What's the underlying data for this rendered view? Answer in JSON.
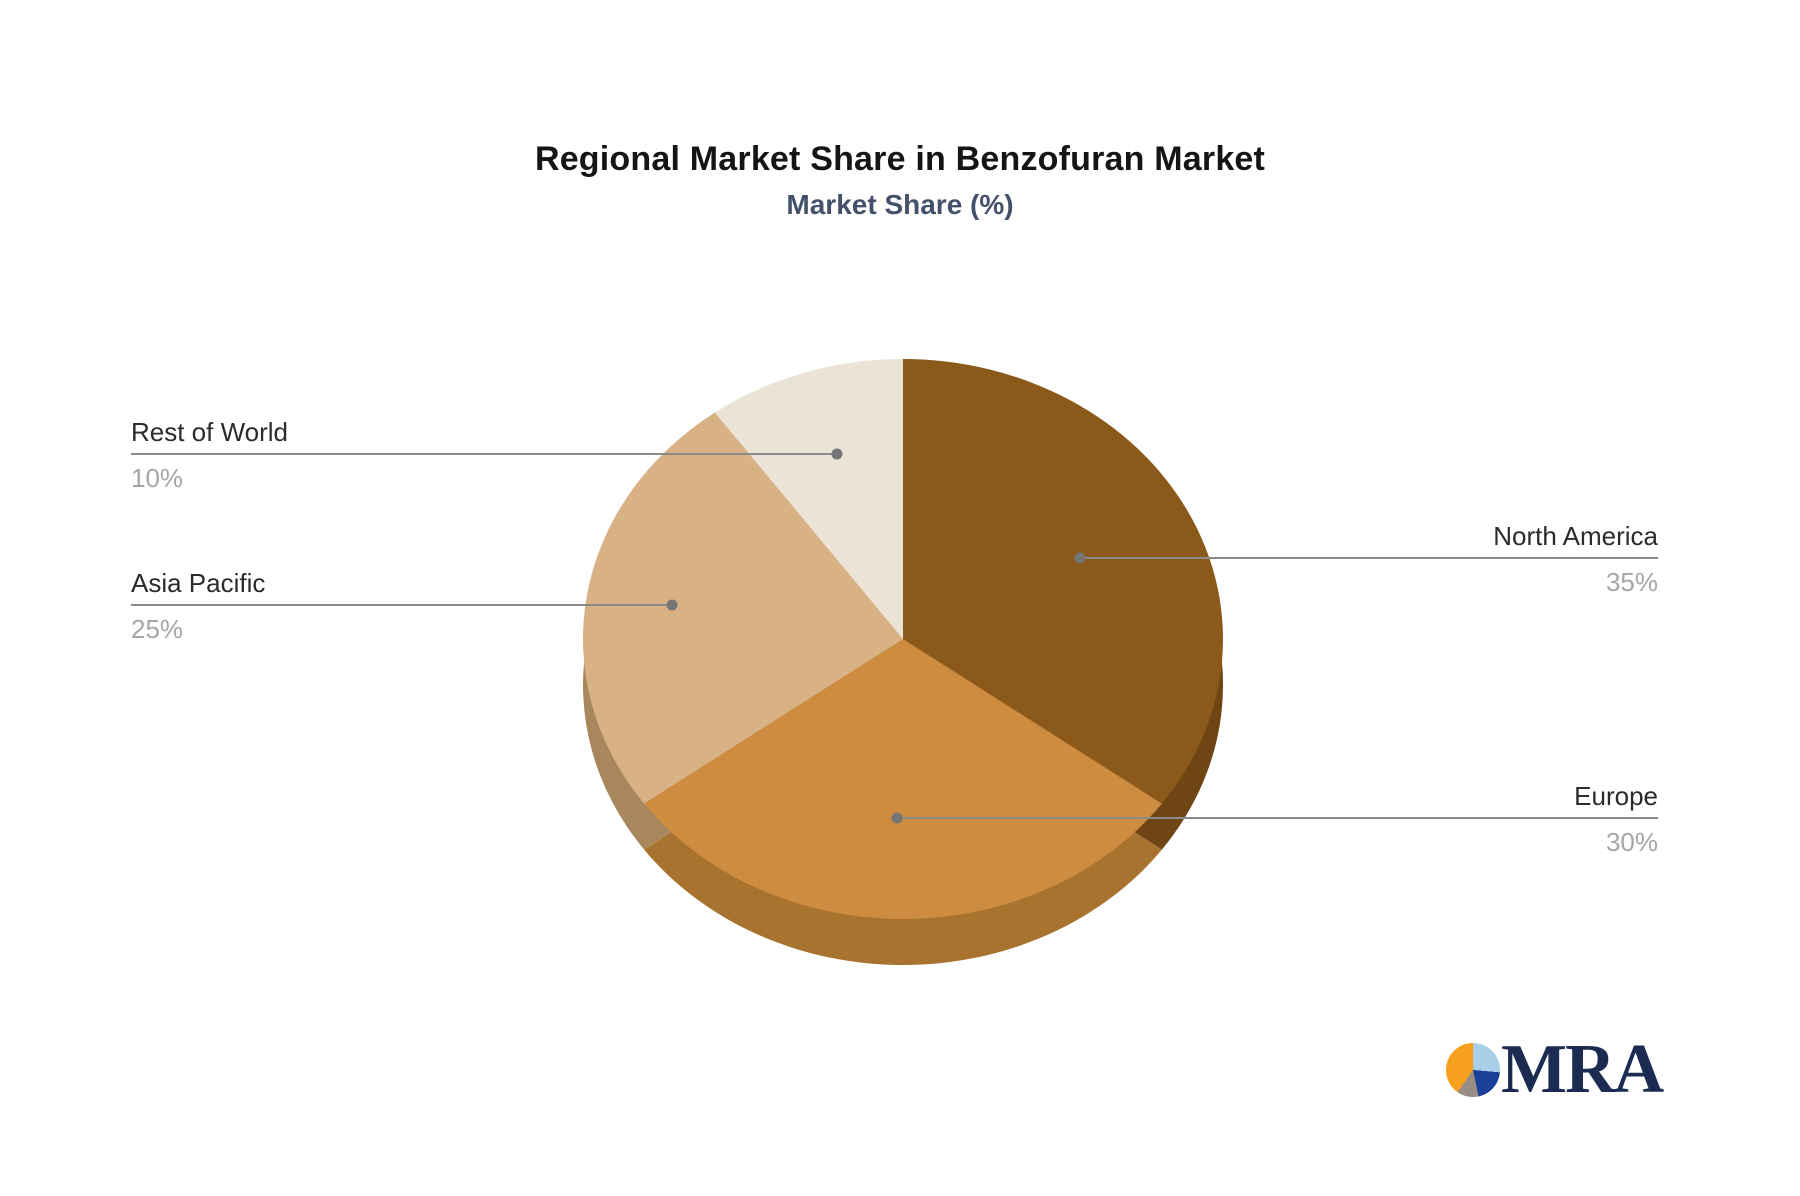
{
  "title": "Regional Market Share in Benzofuran Market",
  "subtitle": "Market Share (%)",
  "chart_data": {
    "type": "pie",
    "style": "3d",
    "title": "Regional Market Share in Benzofuran Market",
    "subtitle": "Market Share (%)",
    "unit": "%",
    "rotation": "clockwise starting at 12 o'clock",
    "legend_position": "none (leader-line labels)",
    "categories": [
      "North America",
      "Europe",
      "Asia Pacific",
      "Rest of World"
    ],
    "values": [
      35,
      30,
      25,
      10
    ],
    "slices": [
      {
        "label": "North America",
        "value": 35,
        "pct_label": "35%",
        "color": "#8B5A1B",
        "side_color": "#6F4513"
      },
      {
        "label": "Europe",
        "value": 30,
        "pct_label": "30%",
        "color": "#CD8C3F",
        "side_color": "#A8722F"
      },
      {
        "label": "Asia Pacific",
        "value": 25,
        "pct_label": "25%",
        "color": "#D8B184",
        "side_color": "#A8875C"
      },
      {
        "label": "Rest of World",
        "value": 10,
        "pct_label": "10%",
        "color": "#ECE3D7",
        "side_color": "#CBBFA9"
      }
    ],
    "leader_line_color": "#8A8A8A",
    "leader_dot_color": "#757575",
    "label_color": "#2B2B2B",
    "pct_color": "#A6A6A6"
  },
  "logo": {
    "text": "MRA",
    "icon": "pie-chart-icon"
  }
}
